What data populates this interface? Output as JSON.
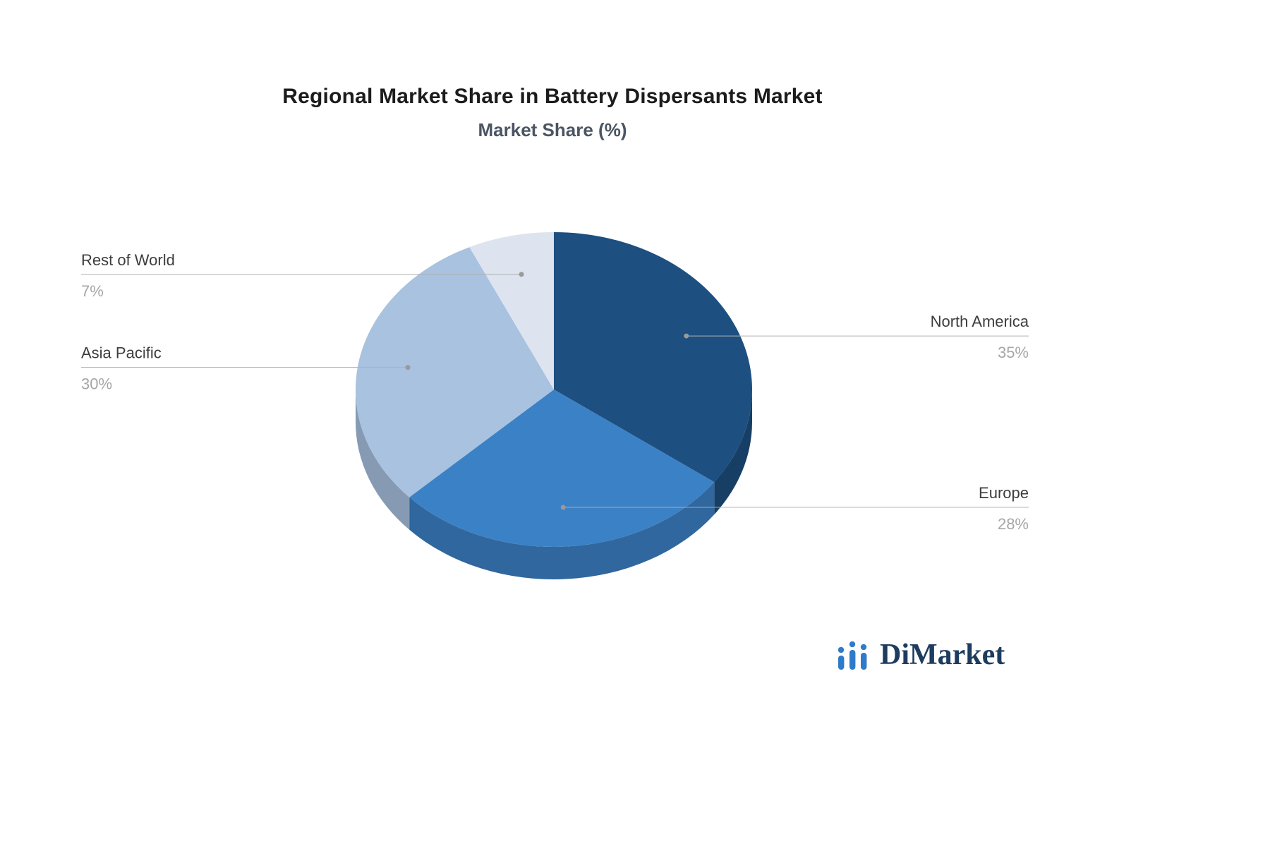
{
  "chart_data": {
    "type": "pie",
    "title": "Regional Market Share in Battery Dispersants Market",
    "subtitle": "Market Share (%)",
    "unit": "%",
    "effect": "3d",
    "direction": "clockwise",
    "start_angle_deg": 0,
    "legend_position": "callout-labels",
    "slices": [
      {
        "label": "North America",
        "value": 35,
        "display": "35%",
        "color": "#1d4f80"
      },
      {
        "label": "Europe",
        "value": 28,
        "display": "28%",
        "color": "#3b81c5"
      },
      {
        "label": "Asia Pacific",
        "value": 30,
        "display": "30%",
        "color": "#a8c2e0"
      },
      {
        "label": "Rest of World",
        "value": 7,
        "display": "7%",
        "color": "#dde4ef"
      }
    ],
    "label_color": "#3d3d3d",
    "value_color": "#a6a6a6",
    "callout_line_color": "#b0b0b0"
  },
  "logo": {
    "text": "DiMarket",
    "icon": "bar-chart-dots-icon",
    "text_color": "#1d3c5e",
    "icon_color": "#2e7bcb"
  }
}
